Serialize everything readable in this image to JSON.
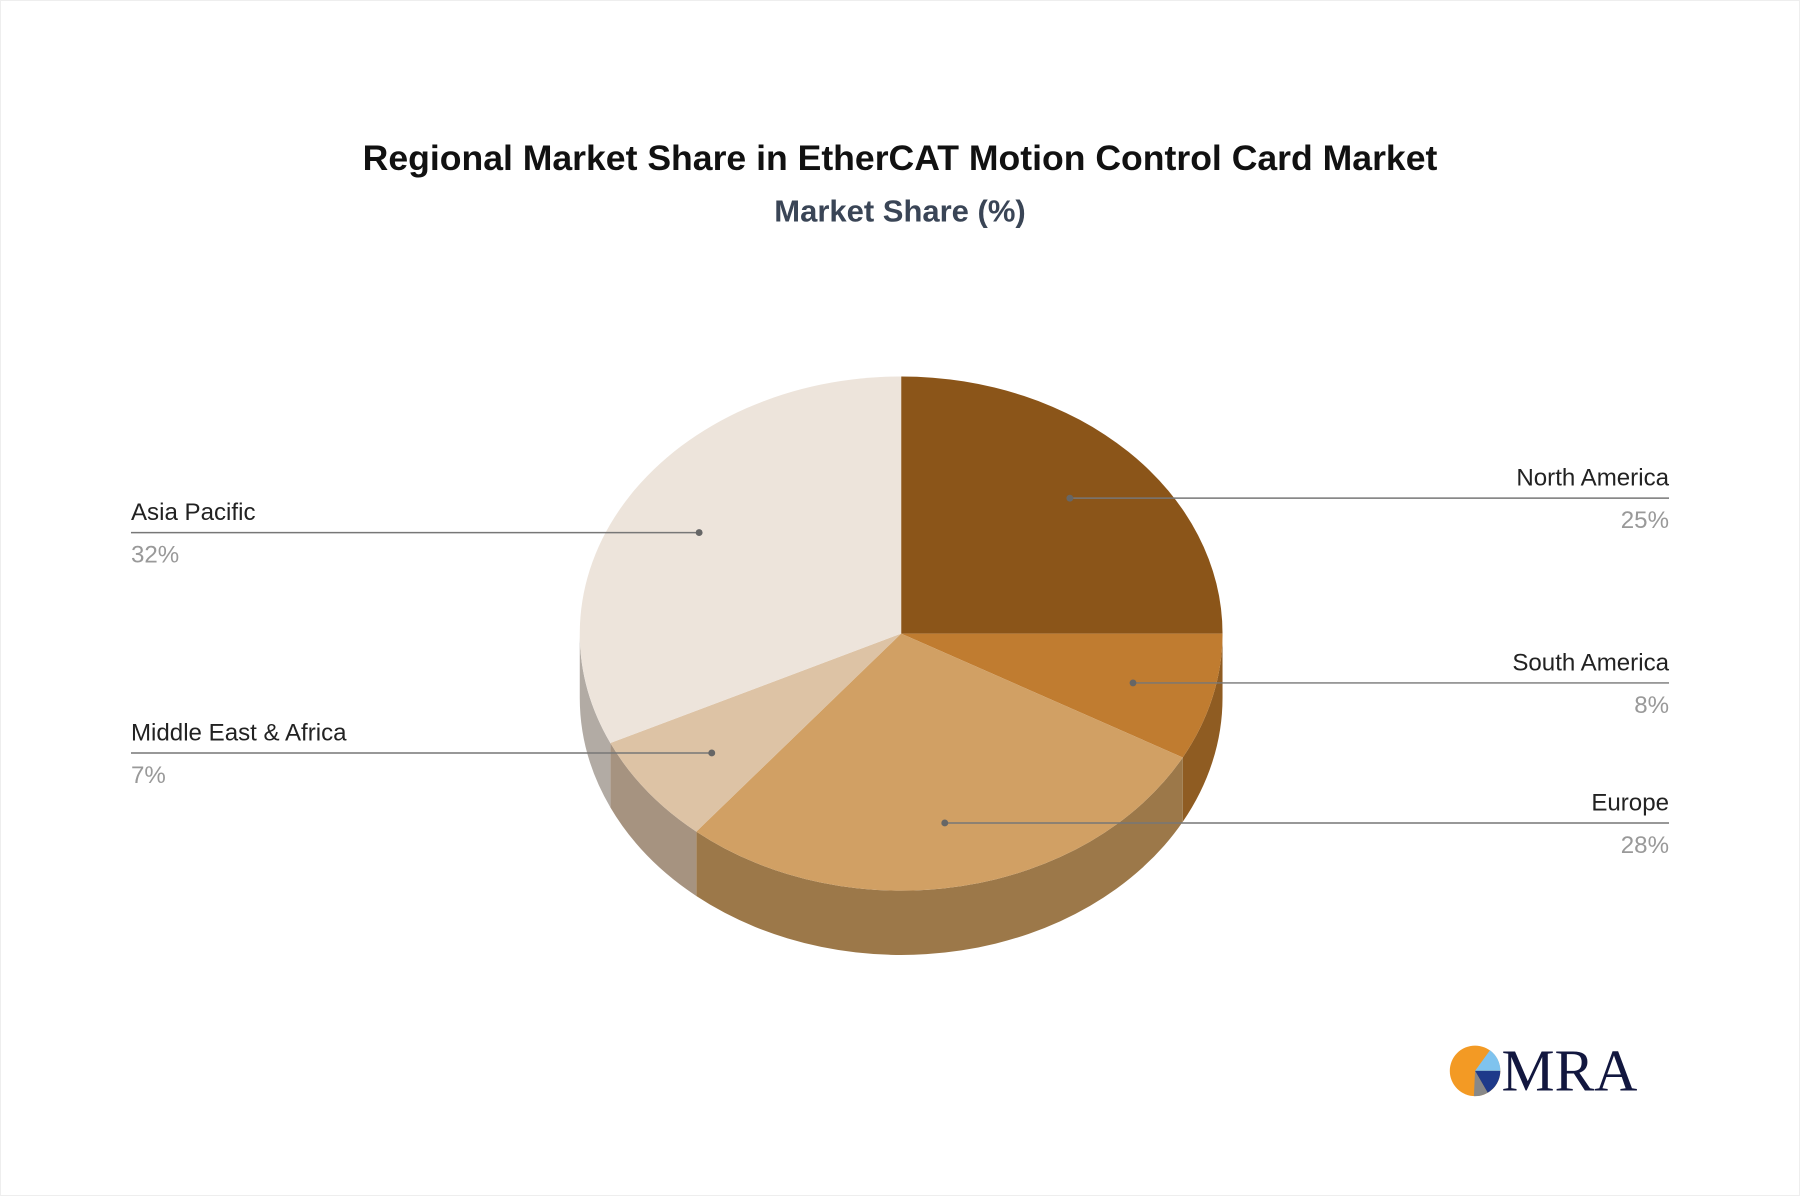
{
  "chart_data": {
    "type": "pie",
    "style": "3d",
    "title": "Regional Market Share in EtherCAT Motion Control Card Market",
    "subtitle": "Market Share (%)",
    "slices": [
      {
        "label": "North America",
        "value": 25,
        "value_label": "25%",
        "color": "#8B5519",
        "side_color": "#6E4314"
      },
      {
        "label": "South America",
        "value": 8,
        "value_label": "8%",
        "color": "#C07C30",
        "side_color": "#8F5C22"
      },
      {
        "label": "Europe",
        "value": 28,
        "value_label": "28%",
        "color": "#D1A064",
        "side_color": "#9C7849"
      },
      {
        "label": "Middle East & Africa",
        "value": 7,
        "value_label": "7%",
        "color": "#DDC3A5",
        "side_color": "#A69380"
      },
      {
        "label": "Asia Pacific",
        "value": 32,
        "value_label": "32%",
        "color": "#EDE4DB",
        "side_color": "#B2ABA4"
      }
    ]
  },
  "logo": {
    "text": "MRA"
  }
}
